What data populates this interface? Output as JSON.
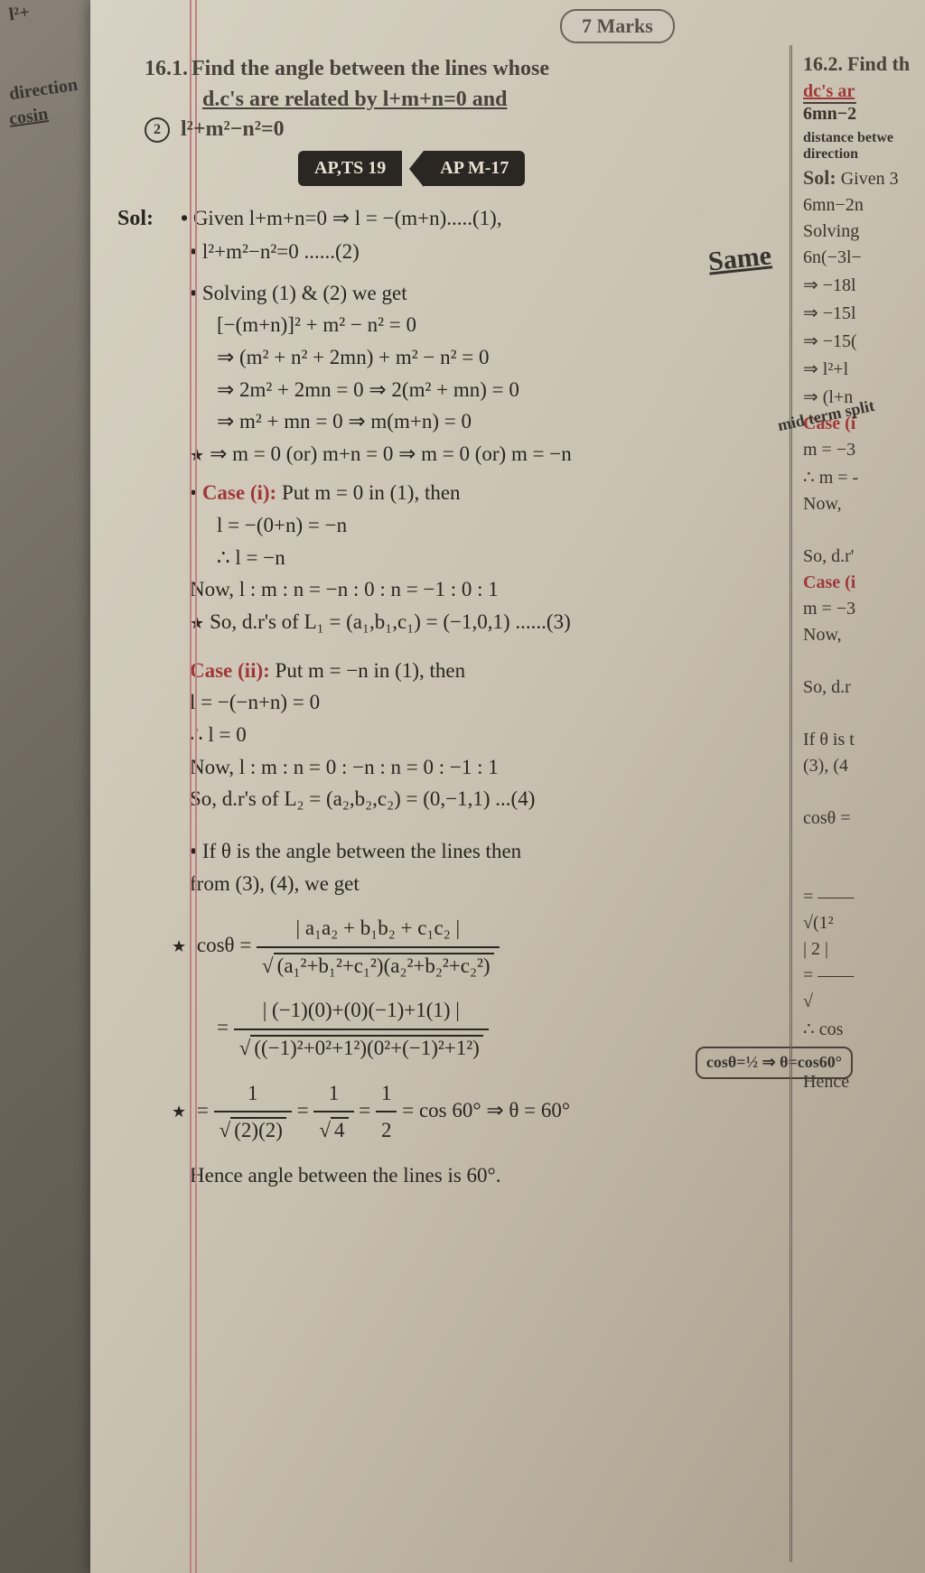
{
  "header": {
    "marks": "7 Marks"
  },
  "annot": {
    "top_left": "l²+",
    "direction": "direction",
    "cosin": "cosin",
    "circled_two": "2",
    "same": "Same",
    "mid_term": "mid term split",
    "cos_boxed": "cosθ=½ ⇒ θ=cos60°"
  },
  "p161": {
    "number": "16.1.",
    "title_l1": "Find the angle between the lines whose",
    "title_l2": "d.c's are related by l+m+n=0 and",
    "title_l3": "l²+m²−n²=0",
    "tag1": "AP,TS 19",
    "tag2": "AP M-17"
  },
  "sol": {
    "label": "Sol:",
    "g1": "Given l+m+n=0 ⇒ l = −(m+n).....(1),",
    "g2": "l²+m²−n²=0 ......(2)",
    "s1": "Solving (1) & (2) we get",
    "s2": "[−(m+n)]² + m² − n² = 0",
    "s3": "⇒ (m² + n² + 2mn) + m² − n² = 0",
    "s4": "⇒ 2m² + 2mn = 0 ⇒ 2(m² + mn) = 0",
    "s5": "⇒ m² + mn = 0 ⇒ m(m+n) = 0",
    "s6": "⇒ m = 0 (or) m+n = 0 ⇒ m = 0 (or) m = −n",
    "c1_h": "Case (i):",
    "c1_t": " Put m = 0 in (1), then",
    "c1_a": "l = −(0+n) = −n",
    "c1_b": "∴ l = −n",
    "c1_c": "Now, l : m : n = −n : 0 : n = −1 : 0 : 1",
    "c1_d": "So, d.r's of L₁ = (a₁,b₁,c₁) = (−1,0,1) ......(3)",
    "c2_h": "Case (ii):",
    "c2_t": " Put m = −n in (1), then",
    "c2_a": "l = −(−n+n) = 0",
    "c2_b": "∴ l = 0",
    "c2_c": "Now, l : m : n = 0 : −n : n = 0 : −1 : 1",
    "c2_d": "So, d.r's of L₂ = (a₂,b₂,c₂) = (0,−1,1)  ...(4)",
    "theta1": "If θ is the angle between the lines then",
    "theta2": "from (3), (4), we get",
    "f_lhs": "cosθ =",
    "f_num": "| a₁a₂ + b₁b₂ + c₁c₂ |",
    "f_den_a": "(a₁²+b₁²+c₁²)(a₂²+b₂²+c₂²)",
    "f2_num": "| (−1)(0)+(0)(−1)+1(1) |",
    "f2_den": "((−1)²+0²+1²)(0²+(−1)²+1²)",
    "f3_a": "1",
    "f3_b": "(2)(2)",
    "f3_c": "1",
    "f3_d": "4",
    "f3_e": "1",
    "f3_f": "2",
    "f3_tail": "= cos 60° ⇒ θ = 60°",
    "final": "Hence angle between the lines is 60°."
  },
  "p162": {
    "number": "16.2.",
    "title": "Find th",
    "l2": "dc's ar",
    "l3": "6mn−2",
    "annot1": "distance betwe",
    "annot2": "direction",
    "sol": "Sol:",
    "g": "Given 3",
    "rows": [
      "6mn−2n",
      "Solving",
      "6n(−3l−",
      "⇒ −18l",
      "⇒ −15l",
      "⇒ −15(",
      "⇒ l²+l",
      "⇒ (l+n",
      "Case (i",
      "m = −3",
      "∴ m = -",
      "Now,",
      "",
      "So, d.r'",
      "Case (i",
      "m = −3",
      "Now,",
      "",
      "So, d.r",
      "",
      "If θ is t",
      "(3), (4",
      "",
      "cosθ =",
      "",
      "",
      "= ——",
      "√(1²",
      "| 2 |",
      "= ——",
      "√",
      "∴ cos",
      "",
      "Hence"
    ]
  },
  "style": {
    "page_bg_start": "#d8d2c4",
    "page_bg_end": "#a89e8c",
    "accent_red": "#a03838",
    "badge_bg": "#2a2622",
    "line_color": "#c08080"
  }
}
